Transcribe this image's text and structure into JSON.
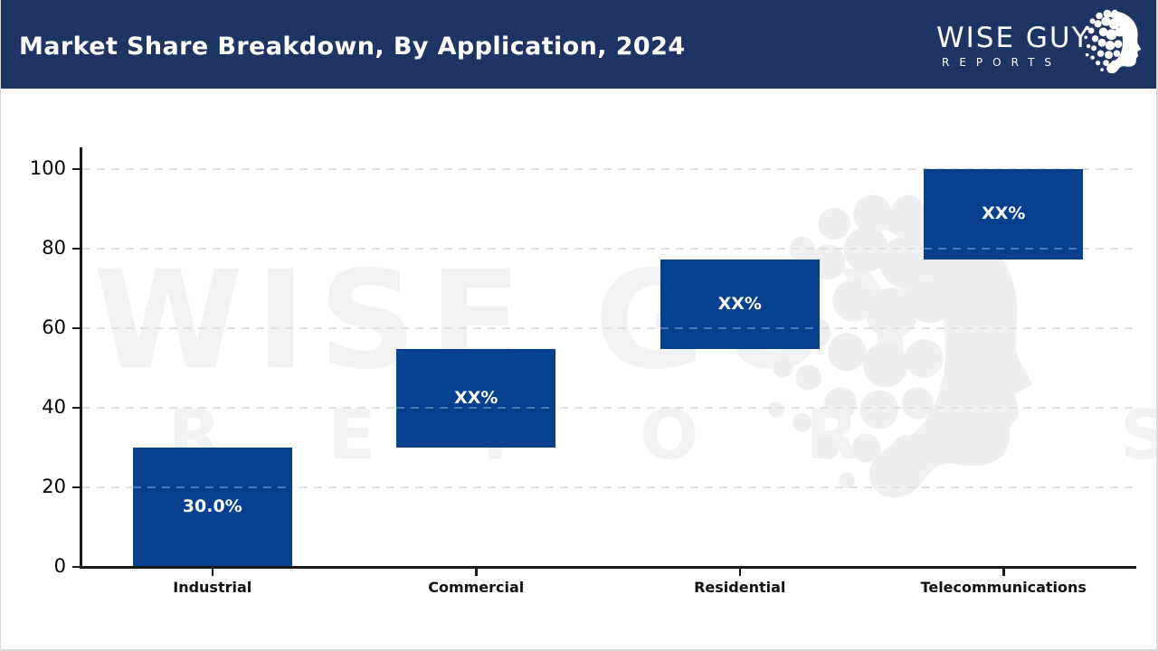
{
  "header": {
    "title": "Market Share Breakdown, By Application, 2024",
    "logo": {
      "line1": "WISE GUY",
      "line2": "REPORTS"
    }
  },
  "watermark": {
    "line1": "WISE GUY",
    "line2": "R E P O R T S"
  },
  "colors": {
    "header_bg": "#1e3463",
    "bar": "#06408f",
    "grid": "#e0e0e0",
    "axis": "#1a1a1a",
    "bar_label": "#ffffff",
    "watermark": "#f2f2f4"
  },
  "chart_data": {
    "type": "bar",
    "subtype": "waterfall",
    "title": "Market Share Breakdown, By Application, 2024",
    "categories": [
      "Industrial",
      "Commercial",
      "Residential",
      "Telecommunications"
    ],
    "bars": [
      {
        "category": "Industrial",
        "start": 0,
        "end": 30,
        "label": "30.0%"
      },
      {
        "category": "Commercial",
        "start": 30,
        "end": 54.7,
        "label": "XX%"
      },
      {
        "category": "Residential",
        "start": 54.7,
        "end": 77.3,
        "label": "XX%"
      },
      {
        "category": "Telecommunications",
        "start": 77.3,
        "end": 100,
        "label": "XX%"
      }
    ],
    "yticks": [
      0,
      20,
      40,
      60,
      80,
      100
    ],
    "ylim": [
      0,
      100
    ],
    "xlabel": "",
    "ylabel": "",
    "grid": "horizontal dashed",
    "legend": "none"
  }
}
